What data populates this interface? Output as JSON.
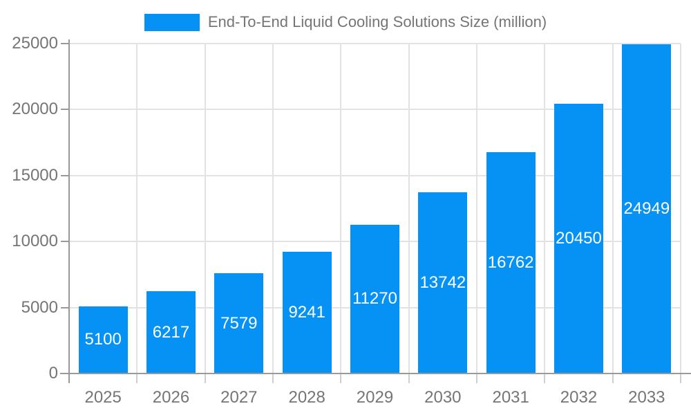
{
  "legend": {
    "label": "End-To-End Liquid Cooling Solutions Size (million)"
  },
  "chart_data": {
    "type": "bar",
    "title": "End-To-End Liquid Cooling Solutions Size (million)",
    "categories": [
      "2025",
      "2026",
      "2027",
      "2028",
      "2029",
      "2030",
      "2031",
      "2032",
      "2033"
    ],
    "values": [
      5100,
      6217,
      7579,
      9241,
      11270,
      13742,
      16762,
      20450,
      24949
    ],
    "xlabel": "",
    "ylabel": "",
    "ylim": [
      0,
      25000
    ],
    "yticks": [
      0,
      5000,
      10000,
      15000,
      20000,
      25000
    ],
    "grid": "on",
    "legend_position": "top-center",
    "value_labels": "inside-center-white",
    "colors": {
      "bar": "#0691f5",
      "value_label": "#ffffff",
      "axis_text": "#757575",
      "grid_line": "#e2e2e2",
      "axis_line": "#999999",
      "x_tick": "#cfcfcf",
      "background": "#ffffff"
    }
  }
}
